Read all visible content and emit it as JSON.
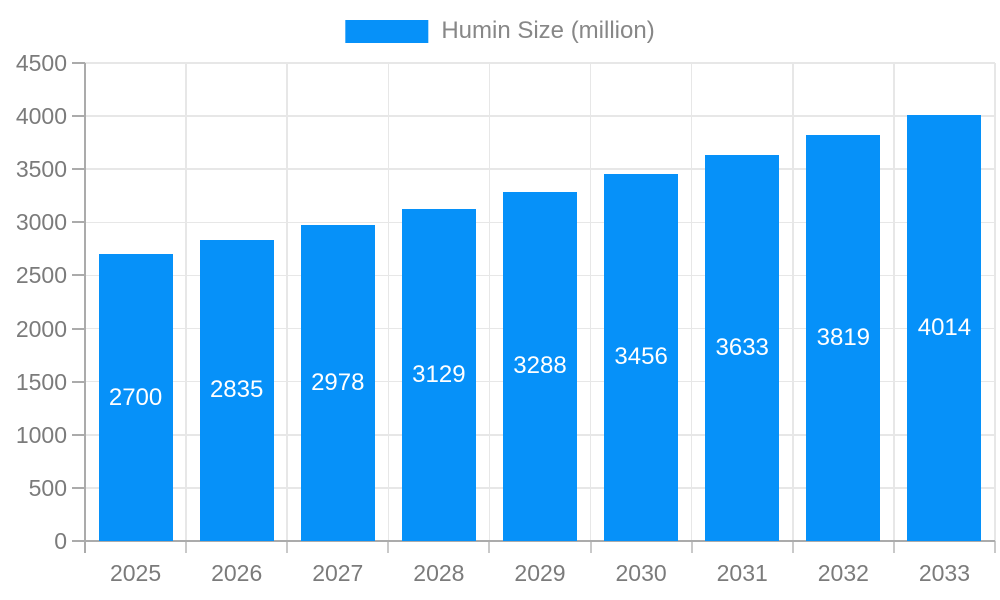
{
  "legend": {
    "label": "Humin Size (million)"
  },
  "chart_data": {
    "type": "bar",
    "title": "",
    "xlabel": "",
    "ylabel": "",
    "categories": [
      "2025",
      "2026",
      "2027",
      "2028",
      "2029",
      "2030",
      "2031",
      "2032",
      "2033"
    ],
    "series": [
      {
        "name": "Humin Size (million)",
        "values": [
          2700,
          2835,
          2978,
          3129,
          3288,
          3456,
          3633,
          3819,
          4014
        ]
      }
    ],
    "value_labels": [
      2700,
      2835,
      2978,
      3129,
      3288,
      3456,
      3633,
      3819,
      4014
    ],
    "ylim": [
      0,
      4500
    ],
    "ytick_step": 500,
    "yticks": [
      0,
      500,
      1000,
      1500,
      2000,
      2500,
      3000,
      3500,
      4000,
      4500
    ],
    "grid": true,
    "legend_position": "top-center",
    "value_label_position": "inside-center",
    "colors": {
      "bar": "#0691f9",
      "value_label": "#ffffff",
      "gridline": "#e7e7e7",
      "axis_line": "#ababab",
      "x_tick_line": "#c9c9c9",
      "tick_label": "#7b7b7b",
      "legend_text": "#878787"
    }
  }
}
